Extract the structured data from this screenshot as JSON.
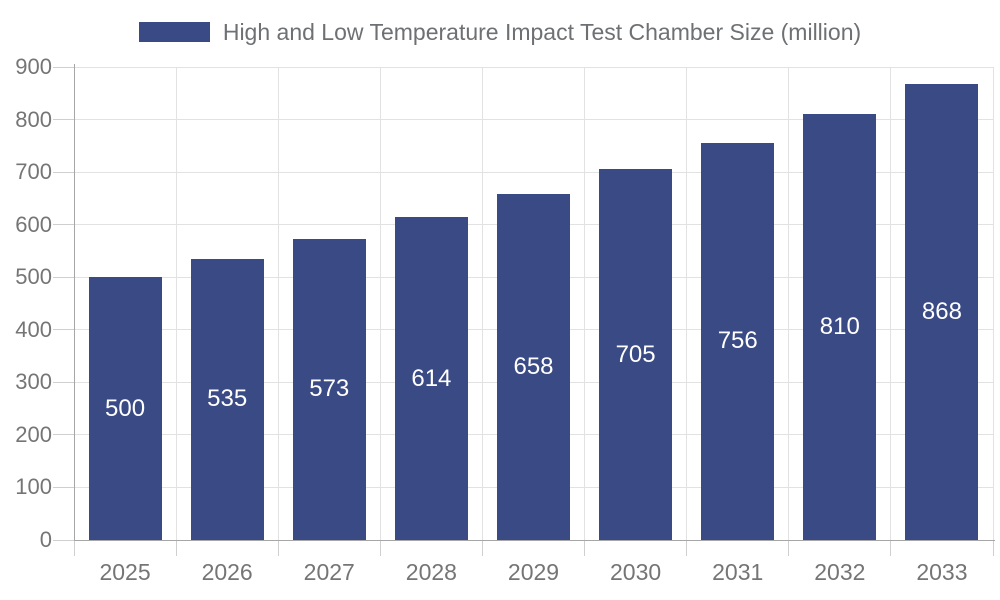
{
  "chart_data": {
    "type": "bar",
    "title": "High and Low Temperature Impact Test Chamber Size (million)",
    "categories": [
      "2025",
      "2026",
      "2027",
      "2028",
      "2029",
      "2030",
      "2031",
      "2032",
      "2033"
    ],
    "values": [
      500,
      535,
      573,
      614,
      658,
      705,
      756,
      810,
      868
    ],
    "series": [
      {
        "name": "High and Low Temperature Impact Test Chamber Size (million)",
        "values": [
          500,
          535,
          573,
          614,
          658,
          705,
          756,
          810,
          868
        ]
      }
    ],
    "xlabel": "",
    "ylabel": "",
    "ylim": [
      0,
      900
    ],
    "yticks": [
      0,
      100,
      200,
      300,
      400,
      500,
      600,
      700,
      800,
      900
    ],
    "grid": true,
    "legend_position": "top",
    "bar_labels_shown": true
  },
  "colors": {
    "bar": "#3a4a85",
    "bar_label": "#ffffff",
    "axis_line": "#a6a6a6",
    "gridline": "#e2e2e2",
    "tick": "#cfcfcf",
    "axis_text": "#757575",
    "title_text": "#6e7174",
    "background": "#ffffff"
  }
}
